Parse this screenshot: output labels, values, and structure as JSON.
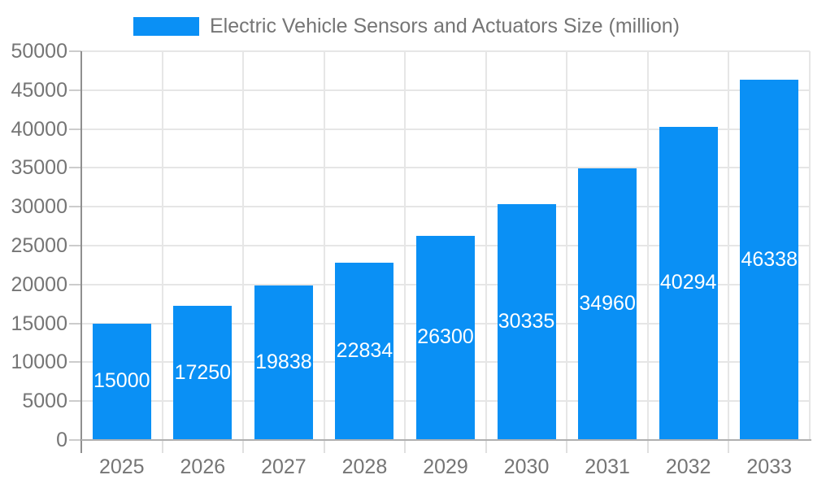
{
  "chart_data": {
    "type": "bar",
    "title": "Electric Vehicle Sensors and Actuators Size (million)",
    "categories": [
      "2025",
      "2026",
      "2027",
      "2028",
      "2029",
      "2030",
      "2031",
      "2032",
      "2033"
    ],
    "values": [
      15000,
      17250,
      19838,
      22834,
      26300,
      30335,
      34960,
      40294,
      46338
    ],
    "series_name": "Electric Vehicle Sensors and Actuators Size (million)",
    "xlabel": "",
    "ylabel": "",
    "ylim": [
      0,
      50000
    ],
    "ytick_step": 5000,
    "grid": true,
    "legend_position": "top",
    "value_labels_inside_bars": true
  },
  "colors": {
    "bar": "#0a90f5",
    "bar_value_label": "#ffffff",
    "axis_text": "#757575",
    "legend_text": "#757575",
    "gridline": "#e6e6e6",
    "axis_line": "#8f8f8f",
    "baseline": "#b0b0b0",
    "tick": "#cccccc",
    "category_separator": "#e0e0e0",
    "background": "#ffffff"
  }
}
